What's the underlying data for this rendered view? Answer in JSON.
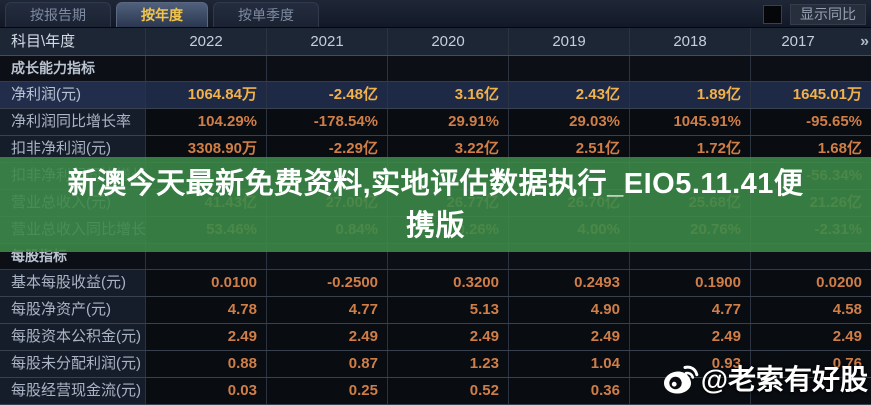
{
  "tabs": [
    {
      "label": "按报告期",
      "active": false
    },
    {
      "label": "按年度",
      "active": true
    },
    {
      "label": "按单季度",
      "active": false
    }
  ],
  "toolbar": {
    "compare_label": "显示同比"
  },
  "table": {
    "corner": "科目\\年度",
    "years": [
      "2022",
      "2021",
      "2020",
      "2019",
      "2018",
      "2017"
    ],
    "more_icon": "»",
    "sections": [
      {
        "title": "成长能力指标",
        "rows": [
          {
            "label": "净利润(元)",
            "highlight": true,
            "values": [
              "1064.84万",
              "-2.48亿",
              "3.16亿",
              "2.43亿",
              "1.89亿",
              "1645.01万"
            ]
          },
          {
            "label": "净利润同比增长率",
            "highlight": false,
            "values": [
              "104.29%",
              "-178.54%",
              "29.91%",
              "29.03%",
              "1045.91%",
              "-95.65%"
            ]
          },
          {
            "label": "扣非净利润(元)",
            "highlight": false,
            "values": [
              "3308.90万",
              "-2.29亿",
              "3.22亿",
              "2.51亿",
              "1.72亿",
              "1.68亿"
            ]
          },
          {
            "label": "扣非净利润同比增长率",
            "highlight": false,
            "values": [
              "",
              "",
              "",
              "",
              "",
              "-56.34%"
            ]
          },
          {
            "label": "营业总收入(元)",
            "highlight": false,
            "values": [
              "41.43亿",
              "27.00亿",
              "26.77亿",
              "26.70亿",
              "25.68亿",
              "21.26亿"
            ]
          },
          {
            "label": "营业总收入同比增长率",
            "highlight": false,
            "values": [
              "53.46%",
              "0.84%",
              "0.26%",
              "4.00%",
              "20.76%",
              "-2.31%"
            ]
          }
        ]
      },
      {
        "title": "每股指标",
        "rows": [
          {
            "label": "基本每股收益(元)",
            "highlight": false,
            "values": [
              "0.0100",
              "-0.2500",
              "0.3200",
              "0.2493",
              "0.1900",
              "0.0200"
            ]
          },
          {
            "label": "每股净资产(元)",
            "highlight": false,
            "values": [
              "4.78",
              "4.77",
              "5.13",
              "4.90",
              "4.77",
              "4.58"
            ]
          },
          {
            "label": "每股资本公积金(元)",
            "highlight": false,
            "values": [
              "2.49",
              "2.49",
              "2.49",
              "2.49",
              "2.49",
              "2.49"
            ]
          },
          {
            "label": "每股未分配利润(元)",
            "highlight": false,
            "values": [
              "0.88",
              "0.87",
              "1.23",
              "1.04",
              "0.93",
              "0.76"
            ]
          },
          {
            "label": "每股经营现金流(元)",
            "highlight": false,
            "values": [
              "0.03",
              "0.25",
              "0.52",
              "0.36",
              "",
              ""
            ]
          }
        ]
      }
    ]
  },
  "overlay": {
    "line1": "新澳今天最新免费资料,实地评估数据执行_EIO5.11.41便",
    "line2": "携版",
    "background_color": "#3c8848",
    "text_color": "#ffffff"
  },
  "watermark": {
    "text": "@老索有好股"
  },
  "colors": {
    "highlight_row_bg": "#1e2945",
    "highlight_value": "#f1b24b",
    "value_orange": "#cf7e48",
    "active_tab_text": "#f3c44c"
  }
}
